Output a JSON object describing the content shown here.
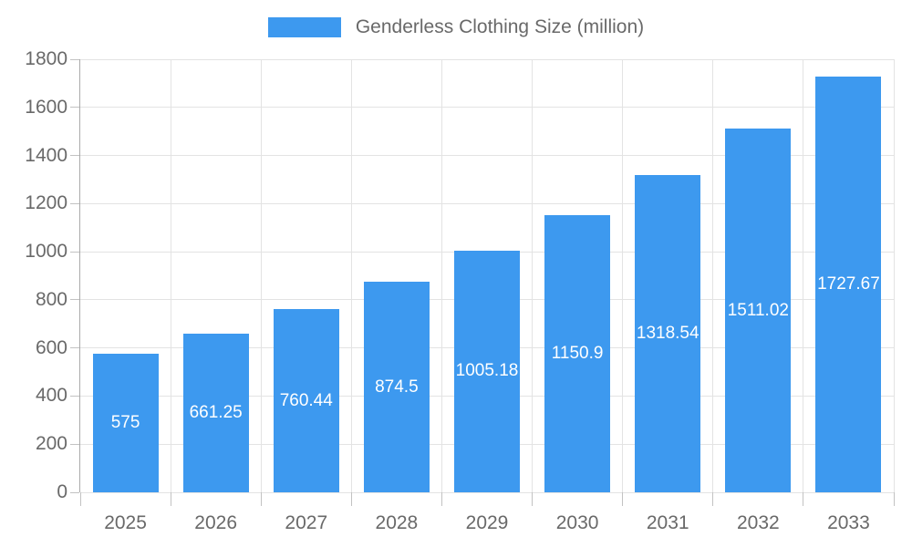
{
  "legend": {
    "label": "Genderless Clothing Size (million)"
  },
  "chart_data": {
    "type": "bar",
    "title": "Genderless Clothing Size (million)",
    "categories": [
      "2025",
      "2026",
      "2027",
      "2028",
      "2029",
      "2030",
      "2031",
      "2032",
      "2033"
    ],
    "values": [
      575,
      661.25,
      760.44,
      874.5,
      1005.18,
      1150.9,
      1318.54,
      1511.02,
      1727.67
    ],
    "bar_labels": [
      "575",
      "661.25",
      "760.44",
      "874.5",
      "1005.18",
      "1150.9",
      "1318.54",
      "1511.02",
      "1727.67"
    ],
    "xlabel": "",
    "ylabel": "",
    "ylim": [
      0,
      1800
    ],
    "y_tick_step": 200,
    "y_tick_labels": [
      "0",
      "200",
      "400",
      "600",
      "800",
      "1000",
      "1200",
      "1400",
      "1600",
      "1800"
    ],
    "grid": true,
    "legend_position": "top",
    "colors": {
      "bar": "#3d99ef",
      "grid": "#e3e3e3",
      "axis_line": "#aaaaaa",
      "tick_mark": "#c2c2c2",
      "tick_text": "#696969",
      "value_label": "#ffffff"
    }
  }
}
